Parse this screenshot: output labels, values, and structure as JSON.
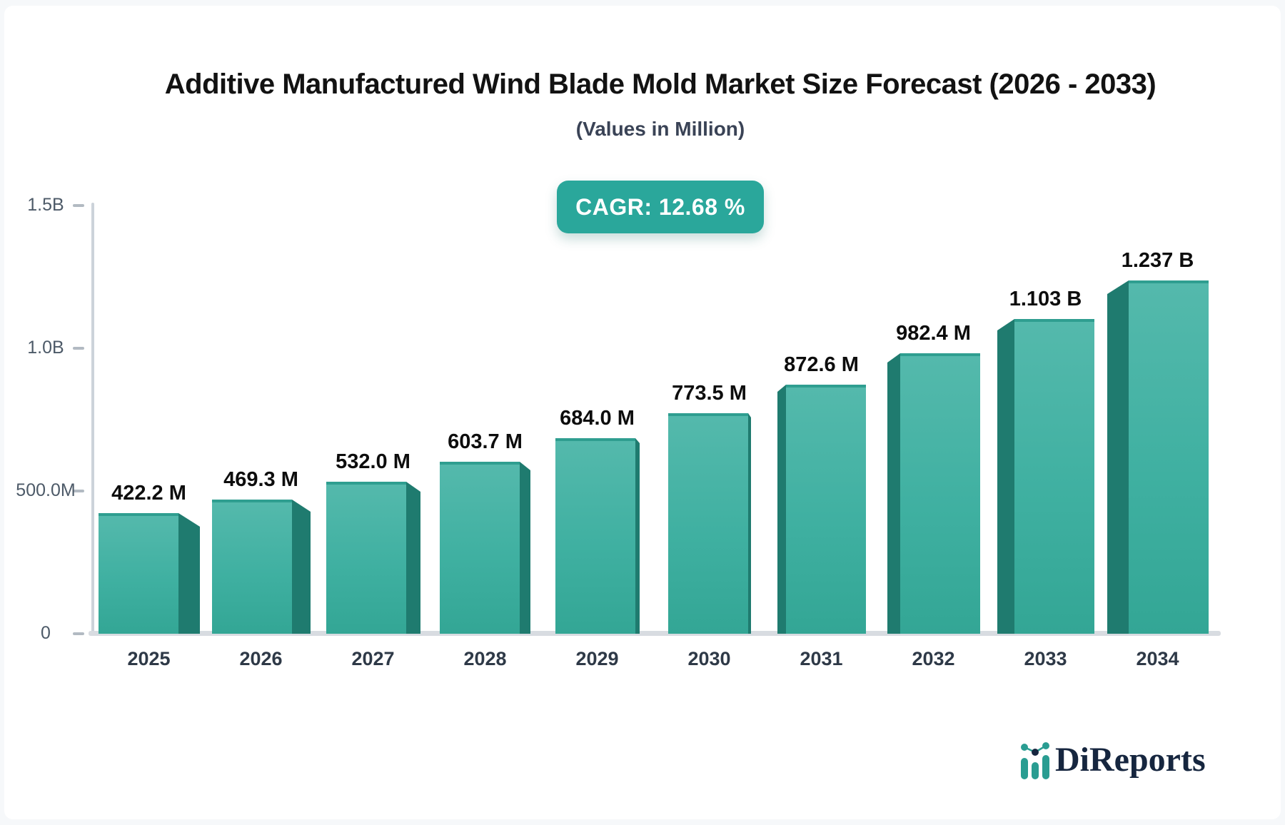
{
  "header": {
    "title": "Additive Manufactured Wind Blade Mold Market Size Forecast (2026 - 2033)",
    "subtitle": "(Values in Million)",
    "cagr_label": "CAGR: 12.68 %"
  },
  "chart_data": {
    "type": "bar",
    "title": "Additive Manufactured Wind Blade Mold Market Size Forecast (2026 - 2033)",
    "subtitle": "(Values in Million)",
    "unit": "Million USD",
    "cagr_percent": 12.68,
    "categories": [
      "2025",
      "2026",
      "2027",
      "2028",
      "2029",
      "2030",
      "2031",
      "2032",
      "2033",
      "2034"
    ],
    "values": [
      422.2,
      469.3,
      532.0,
      603.7,
      684.0,
      773.5,
      872.6,
      982.4,
      1103,
      1237
    ],
    "bar_labels": [
      "422.2 M",
      "469.3 M",
      "532.0 M",
      "603.7 M",
      "684.0 M",
      "773.5 M",
      "872.6 M",
      "982.4 M",
      "1.103 B",
      "1.237 B"
    ],
    "ylim": [
      0,
      1500
    ],
    "yticks": [
      {
        "value": 1500,
        "label": "1.5B"
      },
      {
        "value": 1000,
        "label": "1.0B"
      },
      {
        "value": 500,
        "label": "500.0M"
      },
      {
        "value": 0,
        "label": "0"
      }
    ],
    "grid": false,
    "legend": "none",
    "colors": {
      "bar_face_top": "#54b9ac",
      "bar_face_bottom": "#33a695",
      "bar_side": "#1f7b6f",
      "bar_top_edge": "#2f9e90",
      "badge_background": "#2aa79b",
      "axis_line": "#ccd3da",
      "baseline": "#d8dce1"
    }
  },
  "branding": {
    "logo_text": "DiReports",
    "logo_icon": "mini-bar-chart-logo-icon",
    "logo_text_color": "#16263f",
    "logo_accent_color": "#2a9d92"
  }
}
